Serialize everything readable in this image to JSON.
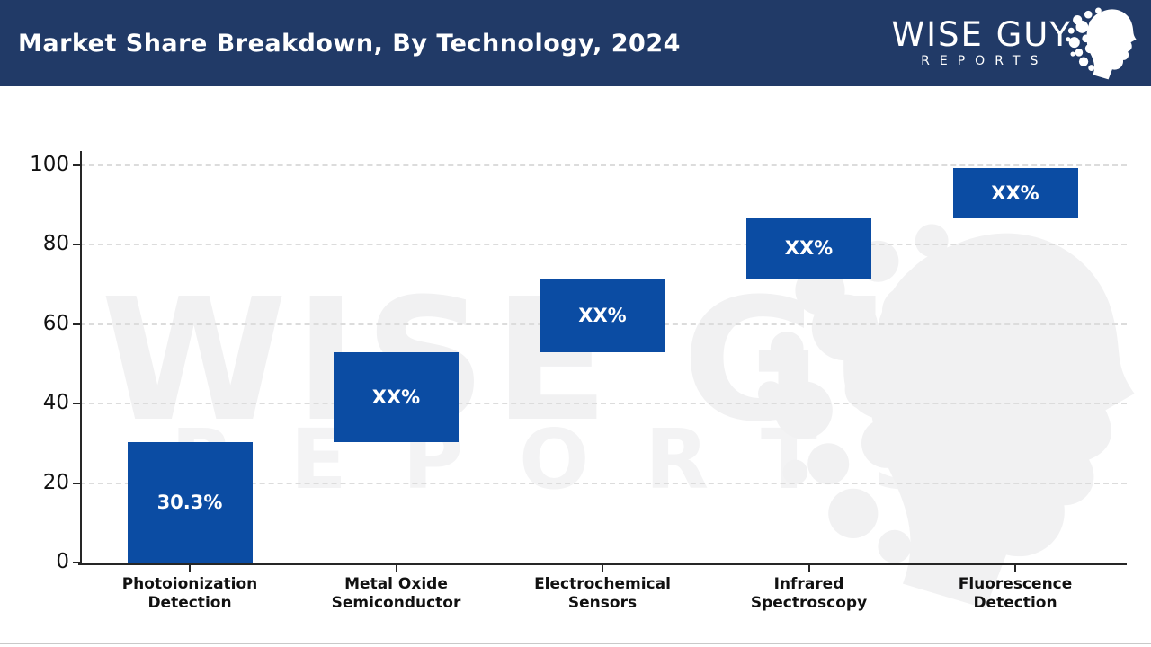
{
  "header": {
    "title": "Market Share Breakdown, By Technology, 2024",
    "logo_line1": "WISE GUY",
    "logo_line2": "REPORTS"
  },
  "watermark": {
    "line1": "WISE GUY",
    "line2": "REPORTS"
  },
  "colors": {
    "header_bg": "#213A67",
    "bar_blue": "#0B4CA3",
    "gridline": "#DCDCDC",
    "axis": "#262626",
    "watermark_gray": "#F1F1F2"
  },
  "chart_data": {
    "type": "bar",
    "subtype": "waterfall",
    "title": "Market Share Breakdown, By Technology, 2024",
    "xlabel": "",
    "ylabel": "",
    "ylim": [
      0,
      105
    ],
    "yticks": [
      0,
      20,
      40,
      60,
      80,
      100
    ],
    "grid": "horizontal-dashed",
    "legend": "none",
    "bar_color": "#0B4CA3",
    "bars": [
      {
        "category": "Photoionization Detection",
        "category_line1": "Photoionization",
        "category_line2": "Detection",
        "start": 0,
        "end": 30.3,
        "label": "30.3%"
      },
      {
        "category": "Metal Oxide Semiconductor",
        "category_line1": "Metal Oxide",
        "category_line2": "Semiconductor",
        "start": 30.3,
        "end": 53,
        "label": "XX%"
      },
      {
        "category": "Electrochemical Sensors",
        "category_line1": "Electrochemical",
        "category_line2": "Sensors",
        "start": 53,
        "end": 71.5,
        "label": "XX%"
      },
      {
        "category": "Infrared Spectroscopy",
        "category_line1": "Infrared",
        "category_line2": "Spectroscopy",
        "start": 71.5,
        "end": 86.7,
        "label": "XX%"
      },
      {
        "category": "Fluorescence Detection",
        "category_line1": "Fluorescence",
        "category_line2": "Detection",
        "start": 86.7,
        "end": 99.4,
        "label": "XX%"
      }
    ]
  }
}
